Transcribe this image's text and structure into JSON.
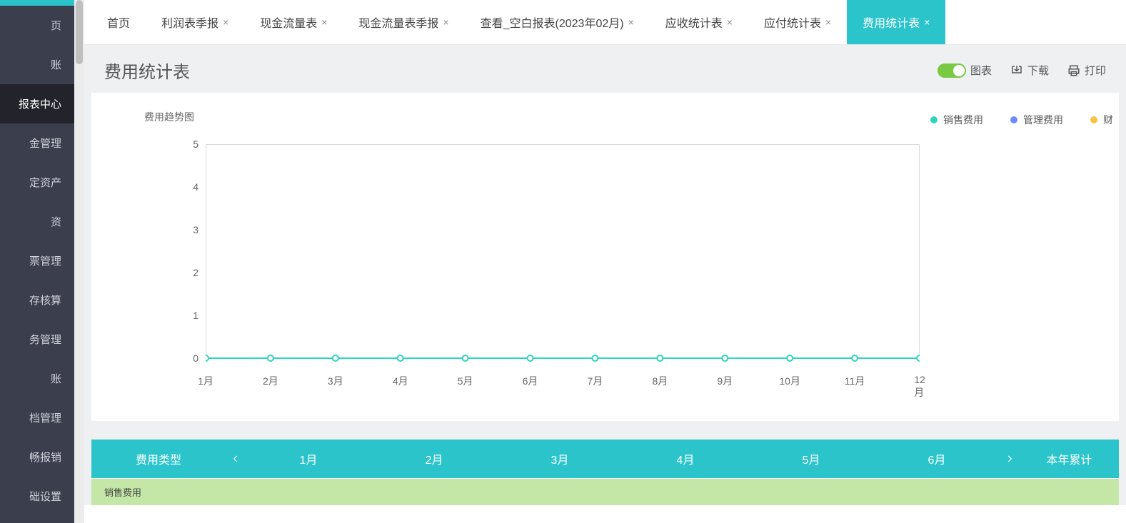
{
  "sidebar": {
    "items": [
      {
        "label": "页"
      },
      {
        "label": "账"
      },
      {
        "label": "报表中心"
      },
      {
        "label": "金管理"
      },
      {
        "label": "定资产"
      },
      {
        "label": "资"
      },
      {
        "label": "票管理"
      },
      {
        "label": "存核算"
      },
      {
        "label": "务管理"
      },
      {
        "label": "账"
      },
      {
        "label": "档管理"
      },
      {
        "label": "畅报销"
      },
      {
        "label": "础设置"
      }
    ],
    "active_index": 2
  },
  "tabs": {
    "items": [
      {
        "label": "首页",
        "closable": false
      },
      {
        "label": "利润表季报",
        "closable": true
      },
      {
        "label": "现金流量表",
        "closable": true
      },
      {
        "label": "现金流量表季报",
        "closable": true
      },
      {
        "label": "查看_空白报表(2023年02月)",
        "closable": true
      },
      {
        "label": "应收统计表",
        "closable": true
      },
      {
        "label": "应付统计表",
        "closable": true
      },
      {
        "label": "费用统计表",
        "closable": true
      }
    ],
    "active_index": 7
  },
  "page": {
    "title": "费用统计表",
    "toggle_label": "图表",
    "download_label": "下载",
    "print_label": "打印"
  },
  "chart": {
    "title": "费用趋势图",
    "type": "line",
    "x_categories": [
      "1月",
      "2月",
      "3月",
      "4月",
      "5月",
      "6月",
      "7月",
      "8月",
      "9月",
      "10月",
      "11月",
      "12月"
    ],
    "y_ticks": [
      0,
      1,
      2,
      3,
      4,
      5
    ],
    "ylim": [
      0,
      5
    ],
    "series": [
      {
        "name": "销售费用",
        "color": "#2dd4bf",
        "values": [
          0,
          0,
          0,
          0,
          0,
          0,
          0,
          0,
          0,
          0,
          0,
          0
        ]
      },
      {
        "name": "管理费用",
        "color": "#6b8cff",
        "values": [
          0,
          0,
          0,
          0,
          0,
          0,
          0,
          0,
          0,
          0,
          0,
          0
        ]
      },
      {
        "name": "财",
        "color": "#f5c542",
        "values": [
          0,
          0,
          0,
          0,
          0,
          0,
          0,
          0,
          0,
          0,
          0,
          0
        ]
      }
    ],
    "grid_color": "#d9d9d9",
    "background_color": "#ffffff",
    "line_width": 2,
    "marker_radius": 4,
    "label_fontsize": 14,
    "label_color": "#666666"
  },
  "table": {
    "type_header": "费用类型",
    "month_headers": [
      "1月",
      "2月",
      "3月",
      "4月",
      "5月",
      "6月"
    ],
    "total_header": "本年累计",
    "rows": [
      {
        "type": "销售费用",
        "values": [
          "",
          "",
          "",
          "",
          "",
          ""
        ],
        "total": ""
      }
    ],
    "header_bg": "#2cc4cb",
    "row_bg": "#c4e6a6"
  },
  "colors": {
    "accent": "#2cc4cb",
    "sidebar_bg": "#3b3e4c",
    "sidebar_active": "#22232b",
    "toggle_on": "#7ac943"
  }
}
